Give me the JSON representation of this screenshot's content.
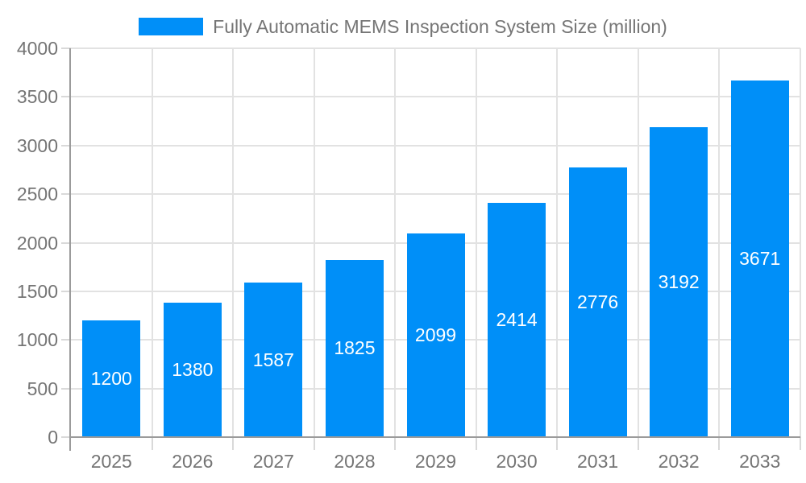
{
  "chart_data": {
    "type": "bar",
    "title": "Fully Automatic MEMS Inspection System Size (million)",
    "categories": [
      "2025",
      "2026",
      "2027",
      "2028",
      "2029",
      "2030",
      "2031",
      "2032",
      "2033"
    ],
    "values": [
      1200,
      1380,
      1587,
      1825,
      2099,
      2414,
      2776,
      3192,
      3671
    ],
    "xlabel": "",
    "ylabel": "",
    "ylim": [
      0,
      4000
    ],
    "ytick_step": 500,
    "ytick_labels": [
      "0",
      "500",
      "1000",
      "1500",
      "2000",
      "2500",
      "3000",
      "3500",
      "4000"
    ],
    "grid": true,
    "legend_position": "top",
    "data_labels": "inside-center",
    "colors": {
      "bar": "#008ff8",
      "bar_label": "#ffffff",
      "axis_text": "#757575",
      "grid_line": "#e2e2e2",
      "axis_line": "#9b9b9b",
      "tick_line": "#d9d9d9",
      "background": "#ffffff"
    }
  }
}
